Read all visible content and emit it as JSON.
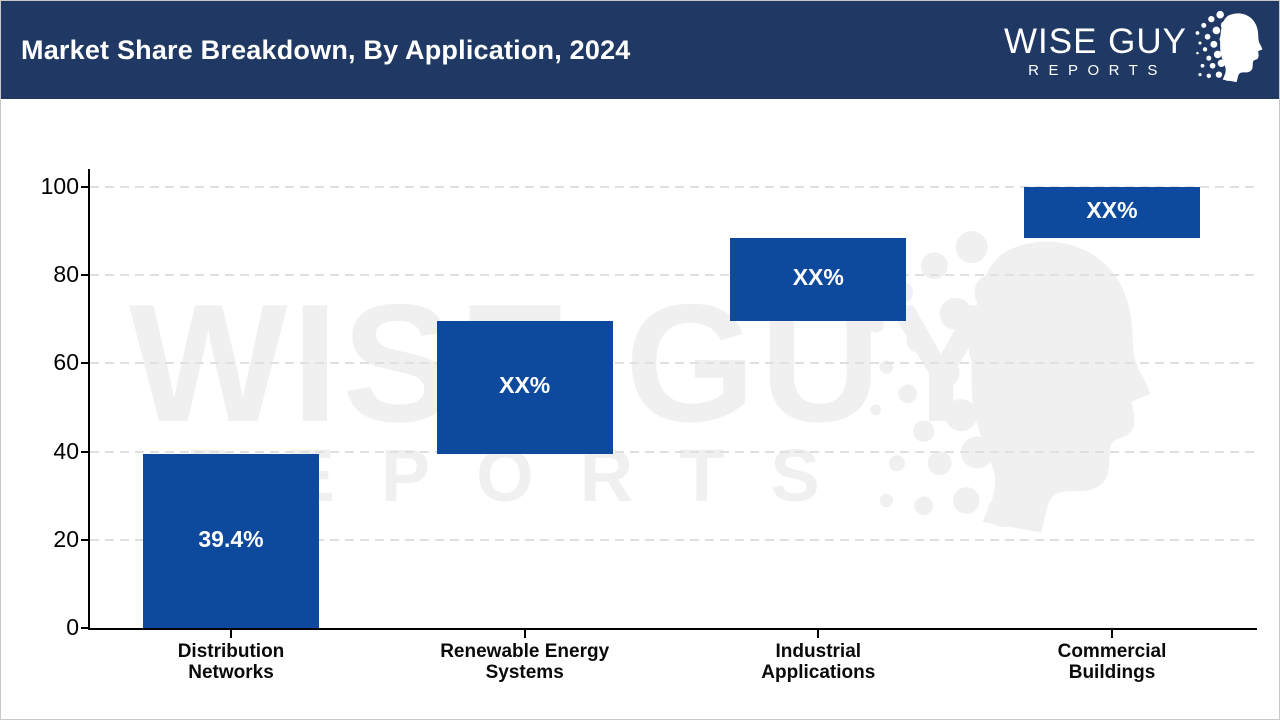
{
  "header": {
    "title": "Market Share Breakdown, By Application, 2024"
  },
  "logo": {
    "line1": "WISE GUY",
    "line2": "REPORTS",
    "head_icon": "dotted-head-profile"
  },
  "watermark": {
    "line1": "WISE GUY",
    "line2": "REPORTS",
    "head_icon": "dotted-head-profile"
  },
  "colors": {
    "header_bg": "#1f3864",
    "bar": "#0d4a9e",
    "grid": "#e0e0e0",
    "bar_label": "#ffffff",
    "axis": "#000000",
    "watermark": "#f0f0f0",
    "figure_border": "#c9c9c9"
  },
  "chart_data": {
    "type": "bar",
    "subtype": "waterfall",
    "title": "Market Share Breakdown, By Application, 2024",
    "categories": [
      [
        "Distribution",
        "Networks"
      ],
      [
        "Renewable Energy",
        "Systems"
      ],
      [
        "Industrial",
        "Applications"
      ],
      [
        "Commercial",
        "Buildings"
      ]
    ],
    "segments": [
      {
        "label": "39.4%",
        "start": 0,
        "end": 39.4
      },
      {
        "label": "XX%",
        "start": 39.4,
        "end": 69.7
      },
      {
        "label": "XX%",
        "start": 69.7,
        "end": 88.5
      },
      {
        "label": "XX%",
        "start": 88.5,
        "end": 100
      }
    ],
    "y_ticks": [
      0,
      20,
      40,
      60,
      80,
      100
    ],
    "ylim": [
      0,
      105
    ],
    "xlabel": "",
    "ylabel": "",
    "grid": "dashed-horizontal",
    "legend": "none"
  }
}
